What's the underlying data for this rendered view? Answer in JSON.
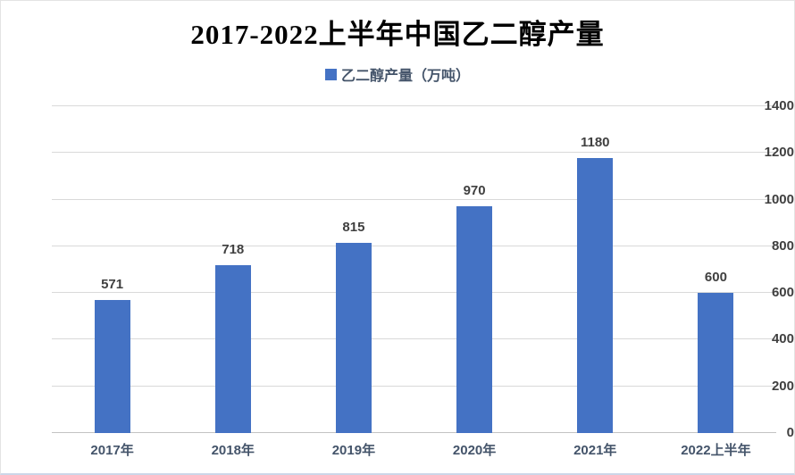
{
  "chart_data": {
    "type": "bar",
    "title": "2017-2022上半年中国乙二醇产量",
    "legend": "乙二醇产量（万吨）",
    "categories": [
      "2017年",
      "2018年",
      "2019年",
      "2020年",
      "2021年",
      "2022上半年"
    ],
    "values": [
      571,
      718,
      815,
      970,
      1180,
      600
    ],
    "xlabel": "",
    "ylabel": "",
    "ylim": [
      0,
      1400
    ],
    "yticks": [
      0,
      200,
      400,
      600,
      800,
      1000,
      1200,
      1400
    ],
    "grid": "horizontal",
    "legend_position": "top-center",
    "colors": {
      "bar": "#4472C4",
      "title_text": "#000000",
      "legend_text": "#44546A",
      "axis_text": "#404040",
      "x_axis_text": "#44546A",
      "gridline": "#d9d9d9"
    }
  }
}
